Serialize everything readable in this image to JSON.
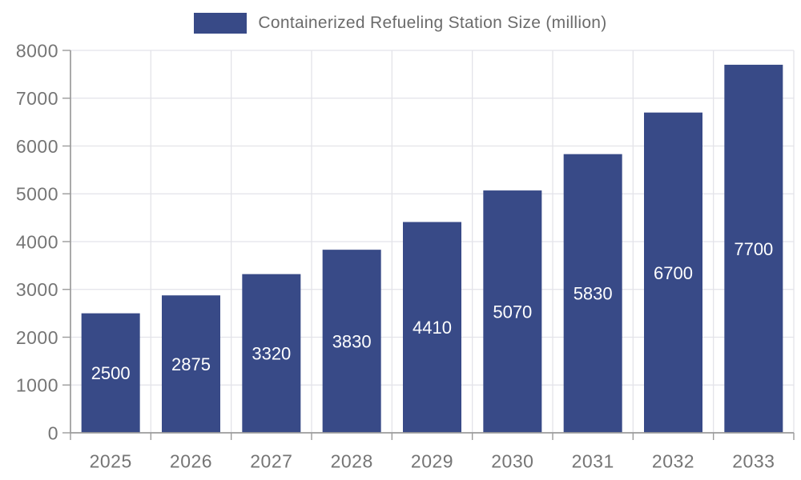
{
  "chart_data": {
    "type": "bar",
    "title": "Containerized Refueling Station Size (million)",
    "legend_label": "Containerized Refueling Station Size (million)",
    "legend_position": "top-center",
    "categories": [
      "2025",
      "2026",
      "2027",
      "2028",
      "2029",
      "2030",
      "2031",
      "2032",
      "2033"
    ],
    "values": [
      2500,
      2875,
      3320,
      3830,
      4410,
      5070,
      5830,
      6700,
      7700
    ],
    "value_labels": [
      "2500",
      "2875",
      "3320",
      "3830",
      "4410",
      "5070",
      "5830",
      "6700",
      "7700"
    ],
    "xlabel": "",
    "ylabel": "",
    "ylim": [
      0,
      8000
    ],
    "ytick_step": 1000,
    "ytick_labels": [
      "0",
      "1000",
      "2000",
      "3000",
      "4000",
      "5000",
      "6000",
      "7000",
      "8000"
    ],
    "grid": true,
    "colors": {
      "bar": "#384A87",
      "value_label": "#FFFFFF",
      "tick_label": "#757575",
      "legend_text": "#6B6B6B",
      "grid_line": "#E3E3E9",
      "axis_line": "#9B9B9B"
    }
  }
}
